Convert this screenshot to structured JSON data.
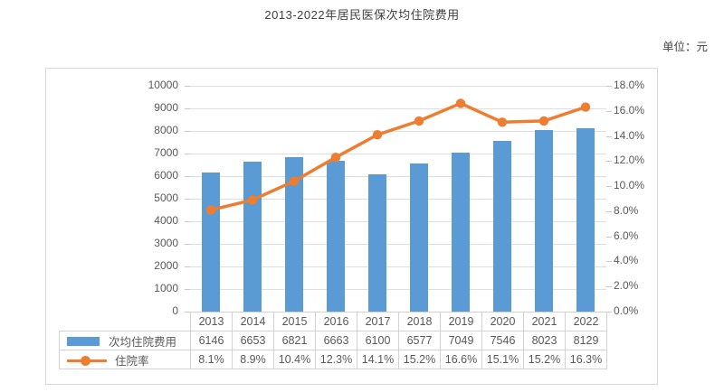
{
  "chart_data": {
    "type": "bar+line",
    "title": "2013-2022年居民医保次均住院费用",
    "unit": "单位：元",
    "categories": [
      "2013",
      "2014",
      "2015",
      "2016",
      "2017",
      "2018",
      "2019",
      "2020",
      "2021",
      "2022"
    ],
    "series": [
      {
        "name": "次均住院费用",
        "type": "bar",
        "axis": "left",
        "color": "#5B9BD5",
        "values": [
          6146,
          6653,
          6821,
          6663,
          6100,
          6577,
          7049,
          7546,
          8023,
          8129
        ]
      },
      {
        "name": "住院率",
        "type": "line",
        "axis": "right",
        "color": "#ED7D31",
        "values": [
          8.1,
          8.9,
          10.4,
          12.3,
          14.1,
          15.2,
          16.6,
          15.1,
          15.2,
          16.3
        ],
        "labels": [
          "8.1%",
          "8.9%",
          "10.4%",
          "12.3%",
          "14.1%",
          "15.2%",
          "16.6%",
          "15.1%",
          "15.2%",
          "16.3%"
        ]
      }
    ],
    "left_axis": {
      "min": 0,
      "max": 10000,
      "step": 1000,
      "tick_labels": [
        "0",
        "1000",
        "2000",
        "3000",
        "4000",
        "5000",
        "6000",
        "7000",
        "8000",
        "9000",
        "10000"
      ]
    },
    "right_axis": {
      "min": 0,
      "max": 18,
      "step": 2,
      "tick_labels": [
        "0.0%",
        "2.0%",
        "4.0%",
        "6.0%",
        "8.0%",
        "10.0%",
        "12.0%",
        "14.0%",
        "16.0%",
        "18.0%"
      ]
    },
    "grid": true,
    "legend_position": "data-table-left",
    "colors": {
      "bar": "#5B9BD5",
      "line": "#ED7D31",
      "grid": "#DEDEDE",
      "text": "#595959",
      "border": "#D9D9D9"
    }
  }
}
